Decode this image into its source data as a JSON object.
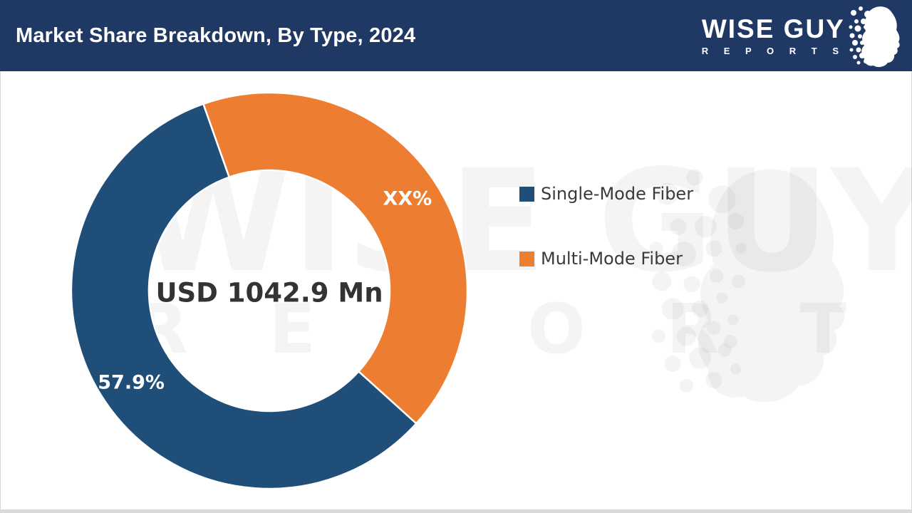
{
  "header": {
    "title": "Market Share Breakdown, By Type, 2024",
    "bg_color": "#203864",
    "logo": {
      "line1": "WISE GUY",
      "line2": "R E P O R T S"
    }
  },
  "watermark": {
    "line1": "WISE GUY",
    "line2": "R E P O R T S"
  },
  "chart_data": {
    "type": "pie",
    "donut": true,
    "title": "Market Share Breakdown, By Type, 2024",
    "center_label": "USD 1042.9 Mn",
    "start_angle_deg": 132.1,
    "legend_position": "right",
    "segments": [
      {
        "label": "Single-Mode Fiber",
        "value": 57.9,
        "display": "57.9%",
        "color": "#1F4E79"
      },
      {
        "label": "Multi-Mode Fiber",
        "value": 42.1,
        "display": "XX%",
        "color": "#ED7D31"
      }
    ]
  }
}
